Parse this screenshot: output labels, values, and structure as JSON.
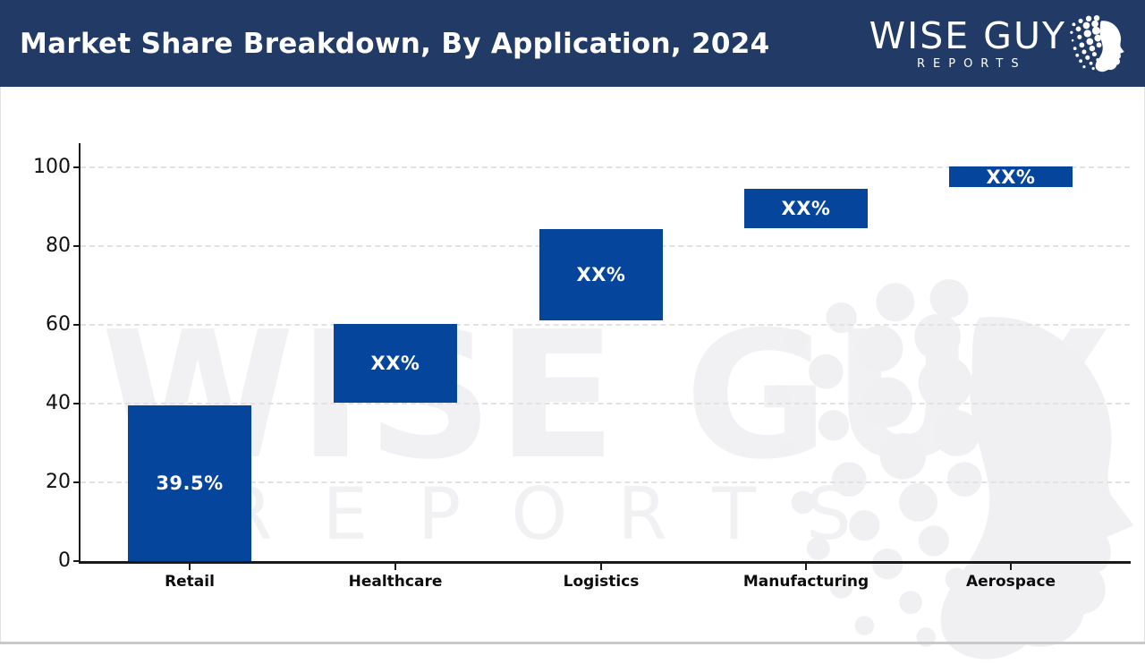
{
  "header": {
    "title": "Market Share Breakdown, By Application, 2024",
    "logo": {
      "line1": "WISE GUY",
      "line2": "REPORTS"
    }
  },
  "watermark": {
    "line1": "WISE GUY",
    "line2": "REPORTS"
  },
  "colors": {
    "header_bg": "#213a66",
    "bar": "#06459c",
    "gridline": "#e2e2e2",
    "axis": "#1a1a1a",
    "watermark": "#f1f1f3",
    "value_label": "#ffffff"
  },
  "chart_data": {
    "type": "bar",
    "variant": "waterfall",
    "title": "Market Share Breakdown, By Application, 2024",
    "categories": [
      "Retail",
      "Healthcare",
      "Logistics",
      "Manufacturing",
      "Aerospace"
    ],
    "segments": [
      {
        "category": "Retail",
        "start": 0,
        "end": 39.5,
        "label": "39.5%"
      },
      {
        "category": "Healthcare",
        "start": 40.3,
        "end": 60.3,
        "label": "XX%"
      },
      {
        "category": "Logistics",
        "start": 61.1,
        "end": 84.3,
        "label": "XX%"
      },
      {
        "category": "Manufacturing",
        "start": 84.5,
        "end": 94.5,
        "label": "XX%"
      },
      {
        "category": "Aerospace",
        "start": 94.9,
        "end": 100.2,
        "label": "XX%"
      }
    ],
    "y_axis": {
      "ticks": [
        0,
        20,
        40,
        60,
        80,
        100
      ],
      "range": [
        0,
        105
      ]
    },
    "xlabel": "",
    "ylabel": "",
    "grid": "horizontal-dashed",
    "legend": "none",
    "bar_color": "#06459c",
    "value_label_color": "#ffffff"
  }
}
